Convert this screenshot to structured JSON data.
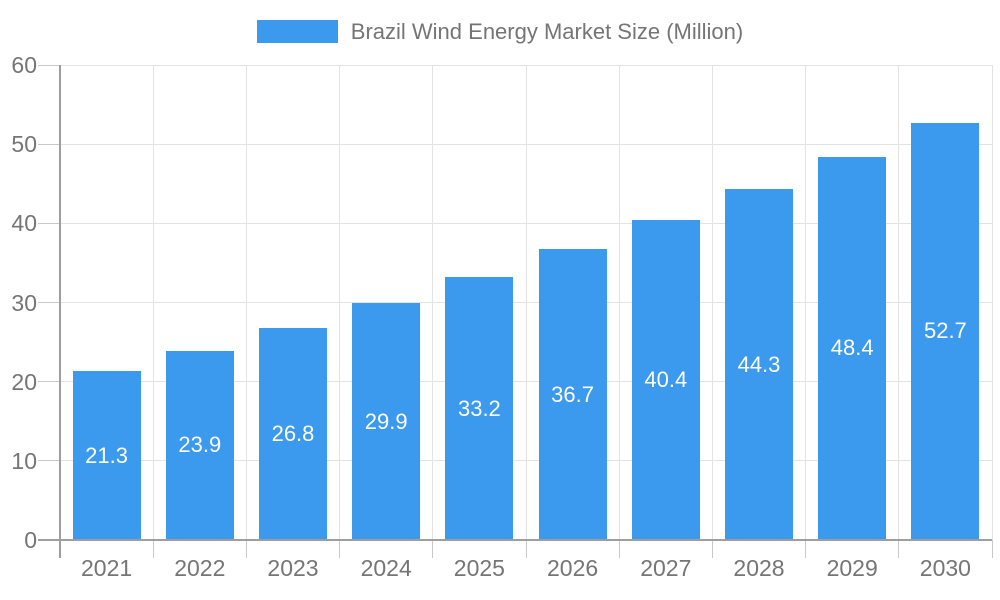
{
  "legend": {
    "label": "Brazil Wind Energy Market Size (Million)",
    "swatch_color": "#3B99EE"
  },
  "chart_data": {
    "type": "bar",
    "title": "Brazil Wind Energy Market Size (Million)",
    "categories": [
      "2021",
      "2022",
      "2023",
      "2024",
      "2025",
      "2026",
      "2027",
      "2028",
      "2029",
      "2030"
    ],
    "values": [
      21.3,
      23.9,
      26.8,
      29.9,
      33.2,
      36.7,
      40.4,
      44.3,
      48.4,
      52.7
    ],
    "data_labels": [
      "21.3",
      "23.9",
      "26.8",
      "29.9",
      "33.2",
      "36.7",
      "40.4",
      "44.3",
      "48.4",
      "52.7"
    ],
    "xlabel": "",
    "ylabel": "",
    "ylim": [
      0,
      60
    ],
    "y_ticks": [
      0,
      10,
      20,
      30,
      40,
      50,
      60
    ],
    "grid": true,
    "legend_position": "top-center",
    "colors": {
      "bar": "#3B99EE",
      "data_label": "#FFFFFF",
      "axis_text": "#757575",
      "gridline": "#E3E3E3",
      "axis_line": "#9E9E9E",
      "tick": "#C9C9C9",
      "background": "#FFFFFF"
    }
  }
}
